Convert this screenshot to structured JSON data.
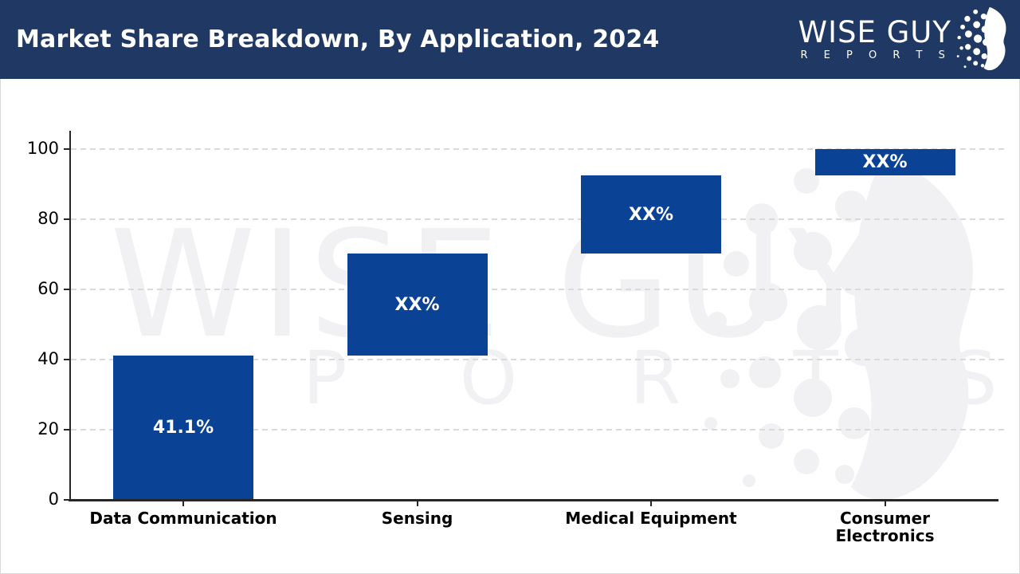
{
  "header": {
    "title": "Market Share Breakdown, By Application, 2024",
    "brand": {
      "line1": "WISE GUY",
      "line2": "R E P O R T S"
    }
  },
  "watermark": {
    "line1": "WISE GUY",
    "line2": "P O R T S"
  },
  "chart_data": {
    "type": "bar",
    "variant": "waterfall",
    "title": "Market Share Breakdown, By Application, 2024",
    "categories": [
      "Data Communication",
      "Sensing",
      "Medical Equipment",
      "Consumer\nElectronics"
    ],
    "segments": [
      {
        "category": "Data Communication",
        "start": 0,
        "end": 41.1,
        "label": "41.1%"
      },
      {
        "category": "Sensing",
        "start": 41.1,
        "end": 70.2,
        "label": "XX%"
      },
      {
        "category": "Medical Equipment",
        "start": 70.2,
        "end": 92.5,
        "label": "XX%"
      },
      {
        "category": "Consumer Electronics",
        "start": 92.5,
        "end": 100,
        "label": "XX%"
      }
    ],
    "yticks": [
      0,
      20,
      40,
      60,
      80,
      100
    ],
    "ylim": [
      0,
      105
    ],
    "xlabel": "",
    "ylabel": "",
    "grid": "horizontal-dashed",
    "legend": "none",
    "bar_color": "#0a4296",
    "value_label_color": "#ffffff",
    "header_color": "#203864"
  }
}
